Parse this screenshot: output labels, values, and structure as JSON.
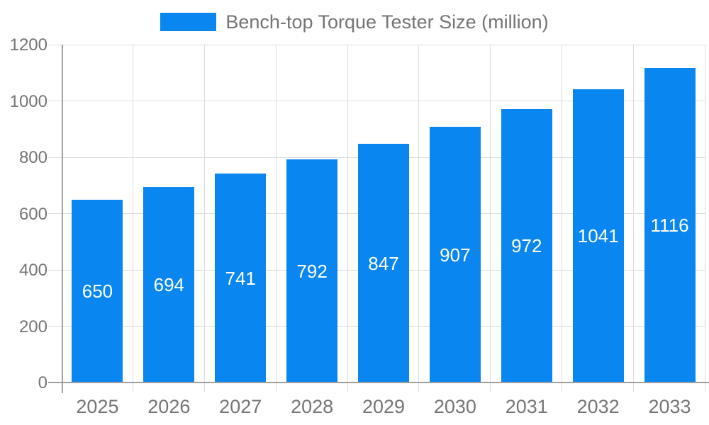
{
  "legend": {
    "label": "Bench-top Torque Tester Size (million)"
  },
  "colors": {
    "bar": "#0a86f0",
    "label_text": "#757575",
    "gridline": "#dcdcdc",
    "axis_line": "#9e9e9e",
    "value_text": "#ffffff",
    "background": "#ffffff"
  },
  "chart_data": {
    "type": "bar",
    "title": "Bench-top Torque Tester Size (million)",
    "categories": [
      "2025",
      "2026",
      "2027",
      "2028",
      "2029",
      "2030",
      "2031",
      "2032",
      "2033"
    ],
    "series": [
      {
        "name": "Bench-top Torque Tester Size (million)",
        "values": [
          650,
          694,
          741,
          792,
          847,
          907,
          972,
          1041,
          1116
        ]
      }
    ],
    "xlabel": "",
    "ylabel": "",
    "ylim": [
      0,
      1200
    ],
    "y_ticks": [
      0,
      200,
      400,
      600,
      800,
      1000,
      1200
    ],
    "grid": true,
    "legend_position": "top",
    "value_label_position": "inside-center"
  }
}
